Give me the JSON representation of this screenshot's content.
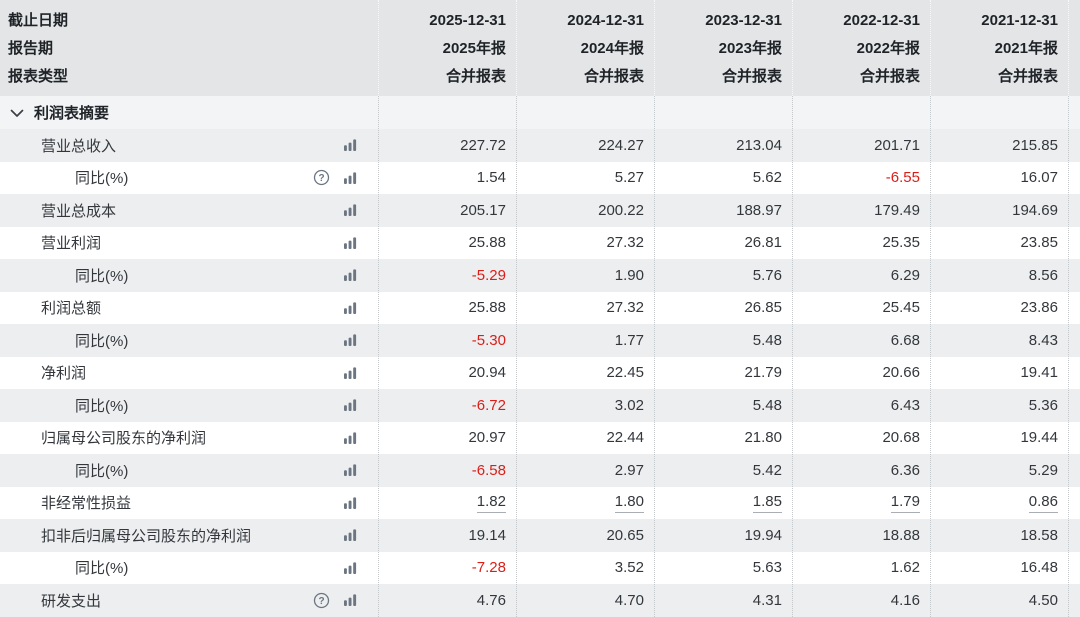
{
  "colors": {
    "header_bg": "#e3e5e6",
    "stripe_bg": "#eceeef",
    "row_bg": "#ffffff",
    "section_bg": "#f2f4f5",
    "text": "#33373c",
    "header_text": "#1f2327",
    "negative_value": "#dc1e19",
    "icon": "#6b7682",
    "divider_dotted": "#c5c8ca"
  },
  "icon_names": {
    "chevron": "chevron-down-icon",
    "help": "help-circle-icon",
    "chart": "bar-chart-icon"
  },
  "header": {
    "row_labels": [
      "截止日期",
      "报告期",
      "报表类型"
    ],
    "columns": [
      {
        "date": "2025-12-31",
        "period": "2025年报",
        "report_type": "合并报表"
      },
      {
        "date": "2024-12-31",
        "period": "2024年报",
        "report_type": "合并报表"
      },
      {
        "date": "2023-12-31",
        "period": "2023年报",
        "report_type": "合并报表"
      },
      {
        "date": "2022-12-31",
        "period": "2022年报",
        "report_type": "合并报表"
      },
      {
        "date": "2021-12-31",
        "period": "2021年报",
        "report_type": "合并报表"
      }
    ]
  },
  "section": {
    "title": "利润表摘要"
  },
  "rows": [
    {
      "label": "营业总收入",
      "indent": 1,
      "help_icon": false,
      "chart_icon": true,
      "underline": false,
      "values": [
        "227.72",
        "224.27",
        "213.04",
        "201.71",
        "215.85"
      ]
    },
    {
      "label": "同比(%)",
      "indent": 2,
      "help_icon": true,
      "chart_icon": true,
      "underline": false,
      "values": [
        "1.54",
        "5.27",
        "5.62",
        "-6.55",
        "16.07"
      ]
    },
    {
      "label": "营业总成本",
      "indent": 1,
      "help_icon": false,
      "chart_icon": true,
      "underline": false,
      "values": [
        "205.17",
        "200.22",
        "188.97",
        "179.49",
        "194.69"
      ]
    },
    {
      "label": "营业利润",
      "indent": 1,
      "help_icon": false,
      "chart_icon": true,
      "underline": false,
      "values": [
        "25.88",
        "27.32",
        "26.81",
        "25.35",
        "23.85"
      ]
    },
    {
      "label": "同比(%)",
      "indent": 2,
      "help_icon": false,
      "chart_icon": true,
      "underline": false,
      "values": [
        "-5.29",
        "1.90",
        "5.76",
        "6.29",
        "8.56"
      ]
    },
    {
      "label": "利润总额",
      "indent": 1,
      "help_icon": false,
      "chart_icon": true,
      "underline": false,
      "values": [
        "25.88",
        "27.32",
        "26.85",
        "25.45",
        "23.86"
      ]
    },
    {
      "label": "同比(%)",
      "indent": 2,
      "help_icon": false,
      "chart_icon": true,
      "underline": false,
      "values": [
        "-5.30",
        "1.77",
        "5.48",
        "6.68",
        "8.43"
      ]
    },
    {
      "label": "净利润",
      "indent": 1,
      "help_icon": false,
      "chart_icon": true,
      "underline": false,
      "values": [
        "20.94",
        "22.45",
        "21.79",
        "20.66",
        "19.41"
      ]
    },
    {
      "label": "同比(%)",
      "indent": 2,
      "help_icon": false,
      "chart_icon": true,
      "underline": false,
      "values": [
        "-6.72",
        "3.02",
        "5.48",
        "6.43",
        "5.36"
      ]
    },
    {
      "label": "归属母公司股东的净利润",
      "indent": 1,
      "help_icon": false,
      "chart_icon": true,
      "underline": false,
      "values": [
        "20.97",
        "22.44",
        "21.80",
        "20.68",
        "19.44"
      ]
    },
    {
      "label": "同比(%)",
      "indent": 2,
      "help_icon": false,
      "chart_icon": true,
      "underline": false,
      "values": [
        "-6.58",
        "2.97",
        "5.42",
        "6.36",
        "5.29"
      ]
    },
    {
      "label": "非经常性损益",
      "indent": 1,
      "help_icon": false,
      "chart_icon": true,
      "underline": true,
      "values": [
        "1.82",
        "1.80",
        "1.85",
        "1.79",
        "0.86"
      ]
    },
    {
      "label": "扣非后归属母公司股东的净利润",
      "indent": 1,
      "help_icon": false,
      "chart_icon": true,
      "underline": false,
      "values": [
        "19.14",
        "20.65",
        "19.94",
        "18.88",
        "18.58"
      ]
    },
    {
      "label": "同比(%)",
      "indent": 2,
      "help_icon": false,
      "chart_icon": true,
      "underline": false,
      "values": [
        "-7.28",
        "3.52",
        "5.63",
        "1.62",
        "16.48"
      ]
    },
    {
      "label": "研发支出",
      "indent": 1,
      "help_icon": true,
      "chart_icon": true,
      "underline": false,
      "values": [
        "4.76",
        "4.70",
        "4.31",
        "4.16",
        "4.50"
      ]
    }
  ]
}
